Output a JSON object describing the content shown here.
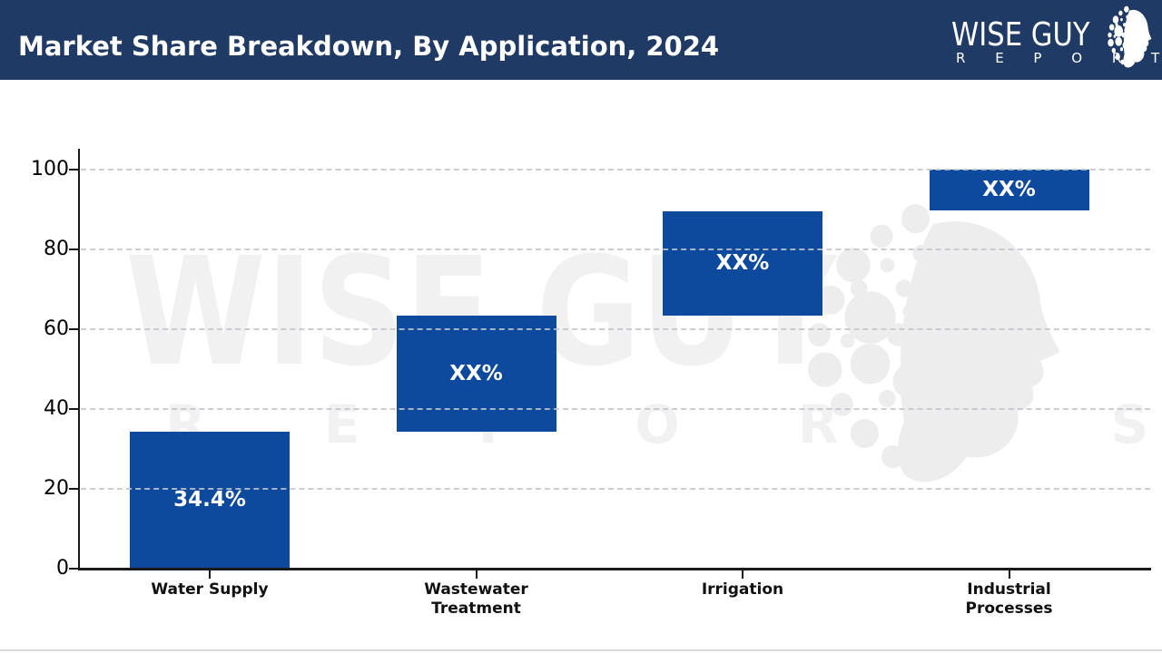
{
  "header": {
    "title": "Market Share Breakdown, By Application, 2024",
    "logo": {
      "wordmark": "WISE GUY",
      "subtext": "R E P O R T S"
    }
  },
  "watermark": {
    "line1": "WISE GUY",
    "line2": "R E P O R T S"
  },
  "colors": {
    "header_bg": "#203A66",
    "bar": "#0D4A9E",
    "bar_label": "#FFFFFF",
    "gridline": "#C9CDD5",
    "axis": "#1A1A1A",
    "watermark": "#F0F0F0"
  },
  "chart_data": {
    "type": "bar",
    "subtype": "floating-segment-waterfall",
    "title": "Market Share Breakdown, By Application, 2024",
    "categories": [
      "Water Supply",
      "Wastewater Treatment",
      "Irrigation",
      "Industrial Processes"
    ],
    "category_lines": [
      [
        "Water Supply"
      ],
      [
        "Wastewater",
        "Treatment"
      ],
      [
        "Irrigation"
      ],
      [
        "Industrial",
        "Processes"
      ]
    ],
    "segments": [
      {
        "category": "Water Supply",
        "start": 0,
        "end": 34.4,
        "label": "34.4%"
      },
      {
        "category": "Wastewater Treatment",
        "start": 34.4,
        "end": 63.4,
        "label": "XX%"
      },
      {
        "category": "Irrigation",
        "start": 63.5,
        "end": 89.5,
        "label": "XX%"
      },
      {
        "category": "Industrial Processes",
        "start": 89.8,
        "end": 100,
        "label": "XX%"
      }
    ],
    "xlabel": "",
    "ylabel": "",
    "ylim": [
      0,
      100
    ],
    "yticks": [
      0,
      20,
      40,
      60,
      80,
      100
    ],
    "grid": "horizontal dashed lines drawn above bars",
    "legend": "none"
  }
}
